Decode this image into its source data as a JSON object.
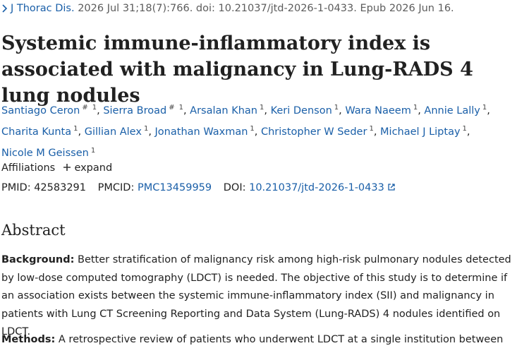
{
  "citation": {
    "journal": "J Thorac Dis.",
    "details": "2026 Jul 31;18(7):766. doi: 10.21037/jtd-2026-1-0433. Epub 2026 Jun 16."
  },
  "title": "Systemic immune-inflammatory index is associated with malignancy in Lung-RADS 4 lung nodules",
  "author_separator": ",",
  "authors": [
    {
      "name": "Santiago Ceron",
      "marks": [
        "#",
        "1"
      ]
    },
    {
      "name": "Sierra Broad",
      "marks": [
        "#",
        "1"
      ]
    },
    {
      "name": "Arsalan Khan",
      "marks": [
        "1"
      ]
    },
    {
      "name": "Keri Denson",
      "marks": [
        "1"
      ]
    },
    {
      "name": "Wara Naeem",
      "marks": [
        "1"
      ]
    },
    {
      "name": "Annie Lally",
      "marks": [
        "1"
      ]
    },
    {
      "name": "Charita Kunta",
      "marks": [
        "1"
      ]
    },
    {
      "name": "Gillian Alex",
      "marks": [
        "1"
      ]
    },
    {
      "name": "Jonathan Waxman",
      "marks": [
        "1"
      ]
    },
    {
      "name": "Christopher W Seder",
      "marks": [
        "1"
      ]
    },
    {
      "name": "Michael J Liptay",
      "marks": [
        "1"
      ]
    },
    {
      "name": "Nicole M Geissen",
      "marks": [
        "1"
      ]
    }
  ],
  "affiliations": {
    "label": "Affiliations",
    "toggle": "expand"
  },
  "identifiers": {
    "pmid": {
      "label": "PMID:",
      "value": "42583291"
    },
    "pmcid": {
      "label": "PMCID:",
      "value": "PMC13459959"
    },
    "doi": {
      "label": "DOI:",
      "value": "10.21037/jtd-2026-1-0433"
    }
  },
  "abstract": {
    "heading": "Abstract",
    "sections": [
      {
        "label": "Background:",
        "text": "Better stratification of malignancy risk among high-risk pulmonary nodules detected by low-dose computed tomography (LDCT) is needed. The objective of this study is to determine if an association exists between the systemic immune-inflammatory index (SII) and malignancy in patients with Lung CT Screening Reporting and Data System (Lung-RADS) 4 nodules identified on LDCT."
      },
      {
        "label": "Methods:",
        "text": "A retrospective review of patients who underwent LDCT at a single institution between"
      }
    ]
  }
}
